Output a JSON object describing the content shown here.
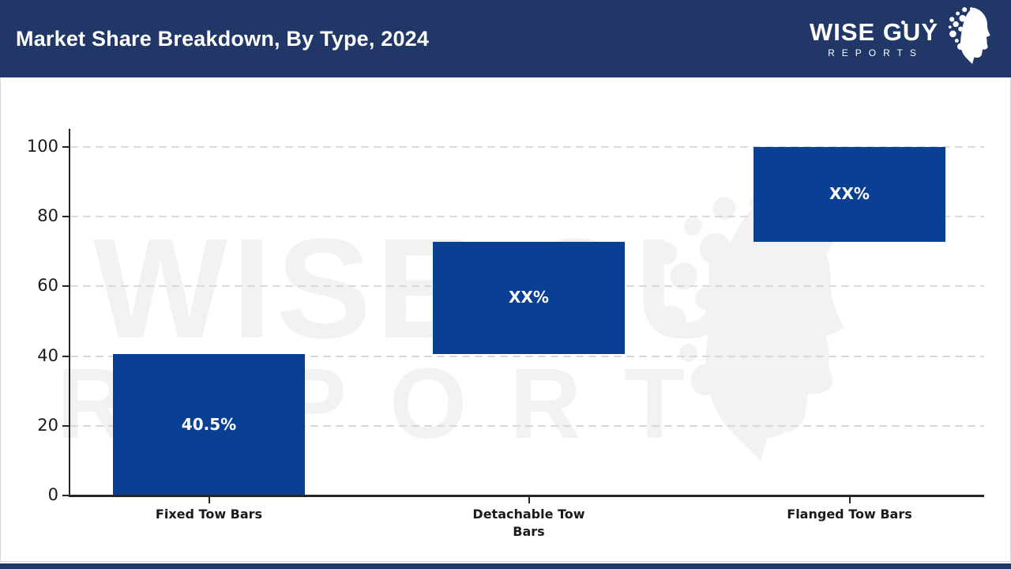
{
  "header": {
    "title": "Market Share Breakdown, By Type, 2024",
    "logo": {
      "name_line": "WISE GUY",
      "sub_line": "REPORTS"
    }
  },
  "watermark": {
    "name_line": "WISE GUY",
    "sub_line": "REPORTS"
  },
  "colors": {
    "header_bg": "#213768",
    "bar": "#0A4094",
    "grid": "#D9D9D9",
    "axis": "#262626",
    "text": "#1A1A1A",
    "bar_label": "#FFFFFF",
    "watermark": "#F2F2F4"
  },
  "chart_data": {
    "type": "bar",
    "subtype": "waterfall",
    "title": "Market Share Breakdown, By Type, 2024",
    "categories": [
      "Fixed Tow Bars",
      "Detachable Tow Bars",
      "Flanged Tow Bars"
    ],
    "bars": [
      {
        "category": "Fixed Tow Bars",
        "start": 0,
        "end": 40.5,
        "label": "40.5%"
      },
      {
        "category": "Detachable Tow Bars",
        "start": 40.5,
        "end": 72.8,
        "label": "XX%"
      },
      {
        "category": "Flanged Tow Bars",
        "start": 72.8,
        "end": 100,
        "label": "XX%"
      }
    ],
    "ylabel": "",
    "xlabel": "",
    "ylim": [
      0,
      100
    ],
    "yticks": [
      0,
      20,
      40,
      60,
      80,
      100
    ],
    "grid": "horizontal-dashed",
    "legend": "none"
  }
}
